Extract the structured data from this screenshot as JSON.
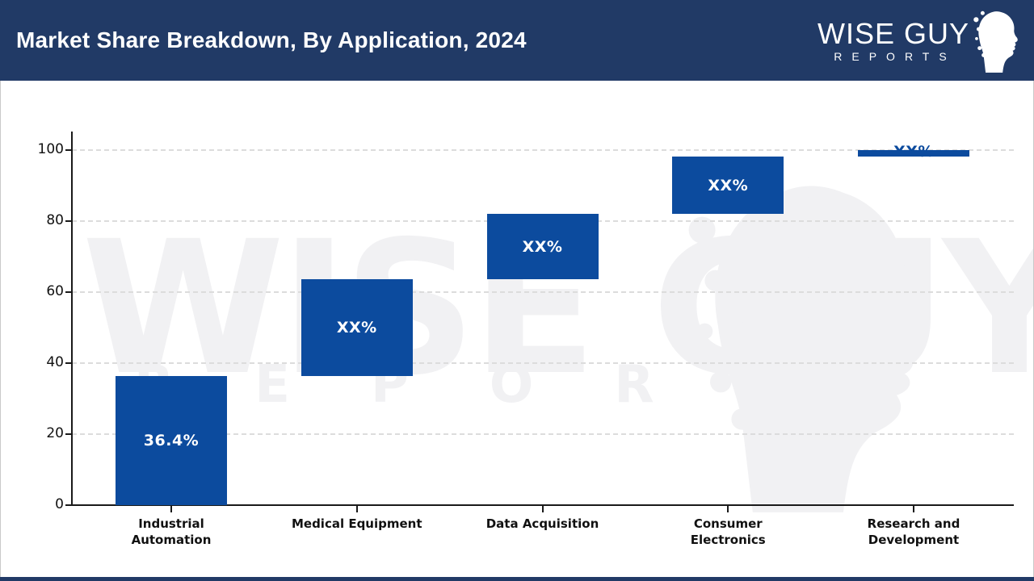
{
  "header": {
    "title": "Market Share Breakdown, By Application, 2024",
    "logo": {
      "line1": "WISE GUY",
      "line2": "REPORTS",
      "head_icon": "dotted-face-profile"
    }
  },
  "watermark": {
    "line1": "WISE GUY",
    "line2": "REPORTS",
    "head_icon": "dotted-face-profile"
  },
  "colors": {
    "header_bg": "#213a66",
    "footer_bg": "#213a66",
    "bar": "#0c4b9e",
    "bar_label_inside": "#ffffff",
    "bar_label_outside": "#0c4b9e",
    "gridline": "#dcdcdc",
    "axis": "#1a1a1a",
    "watermark": "#f1f1f3"
  },
  "chart_data": {
    "type": "bar",
    "subtype": "waterfall-cumulative",
    "title": "Market Share Breakdown, By Application, 2024",
    "categories": [
      "Industrial Automation",
      "Medical Equipment",
      "Data Acquisition",
      "Consumer Electronics",
      "Research and Development"
    ],
    "categories_wrapped": [
      [
        "Industrial",
        "Automation"
      ],
      [
        "Medical Equipment"
      ],
      [
        "Data Acquisition"
      ],
      [
        "Consumer",
        "Electronics"
      ],
      [
        "Research and",
        "Development"
      ]
    ],
    "segments": [
      {
        "category": "Industrial Automation",
        "start": 0,
        "end": 36.4,
        "label": "36.4%"
      },
      {
        "category": "Medical Equipment",
        "start": 36.4,
        "end": 63.6,
        "label": "XX%"
      },
      {
        "category": "Data Acquisition",
        "start": 63.6,
        "end": 82.0,
        "label": "XX%"
      },
      {
        "category": "Consumer Electronics",
        "start": 82.0,
        "end": 98.2,
        "label": "XX%"
      },
      {
        "category": "Research and Development",
        "start": 98.2,
        "end": 100.0,
        "label": "XX%"
      }
    ],
    "y_ticks": [
      0,
      20,
      40,
      60,
      80,
      100
    ],
    "ylim": [
      0,
      105
    ],
    "xlabel": "",
    "ylabel": "",
    "grid": "horizontal-dashed",
    "legend": "none"
  }
}
